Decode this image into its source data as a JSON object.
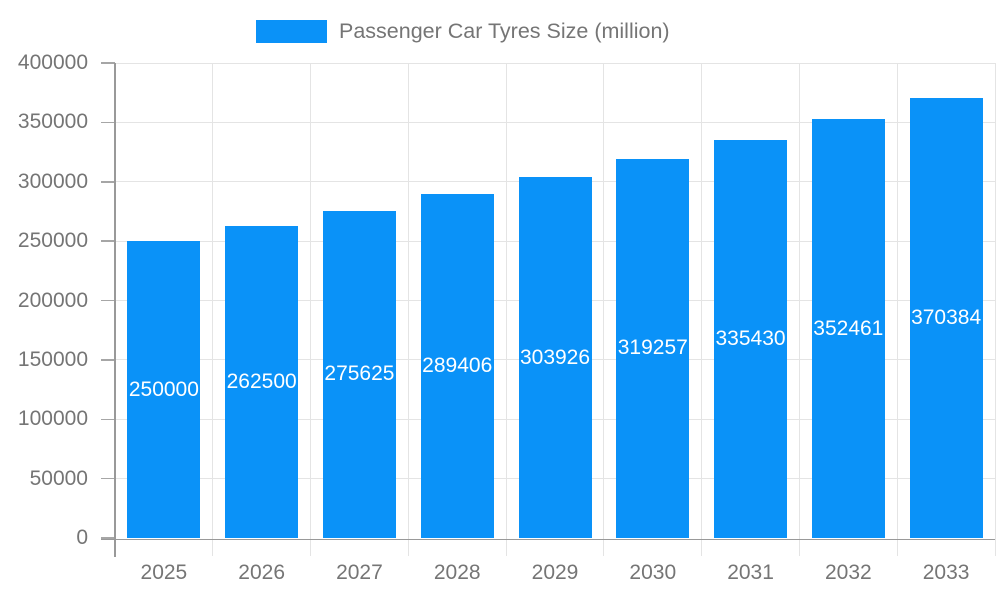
{
  "legend": {
    "label": "Passenger Car Tyres Size (million)"
  },
  "chart_data": {
    "type": "bar",
    "title": "Passenger Car Tyres Size (million)",
    "categories": [
      "2025",
      "2026",
      "2027",
      "2028",
      "2029",
      "2030",
      "2031",
      "2032",
      "2033"
    ],
    "series": [
      {
        "name": "Passenger Car Tyres Size (million)",
        "values": [
          250000,
          262500,
          275625,
          289406,
          303926,
          319257,
          335430,
          352461,
          370384
        ]
      }
    ],
    "bar_labels": [
      "250000",
      "262500",
      "275625",
      "289406",
      "303926",
      "319257",
      "335430",
      "352461",
      "370384"
    ],
    "xlabel": "",
    "ylabel": "",
    "ylim": [
      0,
      400000
    ],
    "ytick_step": 50000,
    "ytick_labels": [
      "0",
      "50000",
      "100000",
      "150000",
      "200000",
      "250000",
      "300000",
      "350000",
      "400000"
    ],
    "grid": true,
    "legend_position": "top",
    "colors": {
      "bar": "#0a92f8",
      "gridline": "#e4e4e4",
      "axis_line": "#999999",
      "tick": "#a6a6a6",
      "axis_text": "#757575",
      "annotation_text": "#ffffff",
      "background": "#ffffff"
    }
  }
}
